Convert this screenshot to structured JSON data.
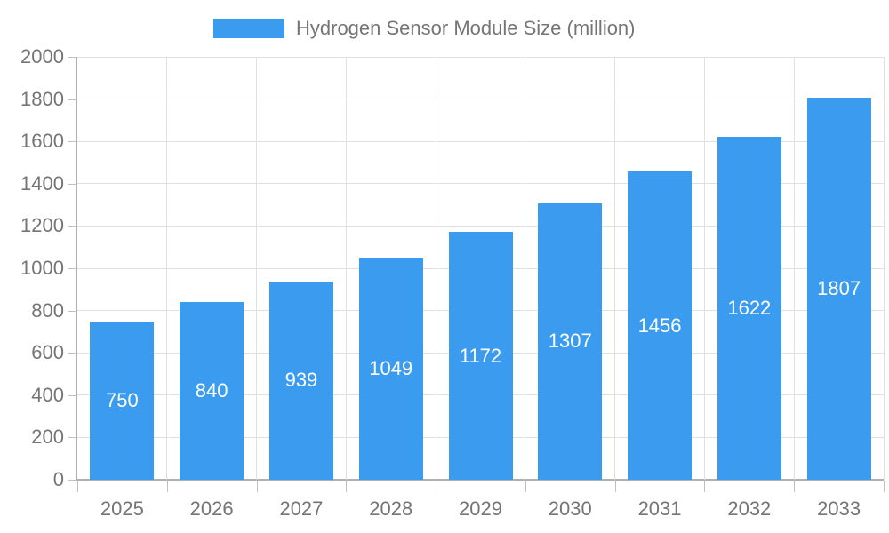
{
  "legend": {
    "label": "Hydrogen Sensor Module Size (million)"
  },
  "colors": {
    "bar": "#3b9cef",
    "bar_label": "#ffffff",
    "grid": "#e0e0e0",
    "axis": "#b0b0b0",
    "tick_mark": "#c0c0c0",
    "tick_text": "#757575"
  },
  "chart_data": {
    "type": "bar",
    "title": "Hydrogen Sensor Module Size (million)",
    "categories": [
      "2025",
      "2026",
      "2027",
      "2028",
      "2029",
      "2030",
      "2031",
      "2032",
      "2033"
    ],
    "values": [
      750,
      840,
      939,
      1049,
      1172,
      1307,
      1456,
      1622,
      1807
    ],
    "xlabel": "",
    "ylabel": "",
    "ylim": [
      0,
      2000
    ],
    "yticks": [
      0,
      200,
      400,
      600,
      800,
      1000,
      1200,
      1400,
      1600,
      1800,
      2000
    ],
    "grid": true,
    "legend_position": "top-center",
    "value_labels": "inside-center-white"
  }
}
